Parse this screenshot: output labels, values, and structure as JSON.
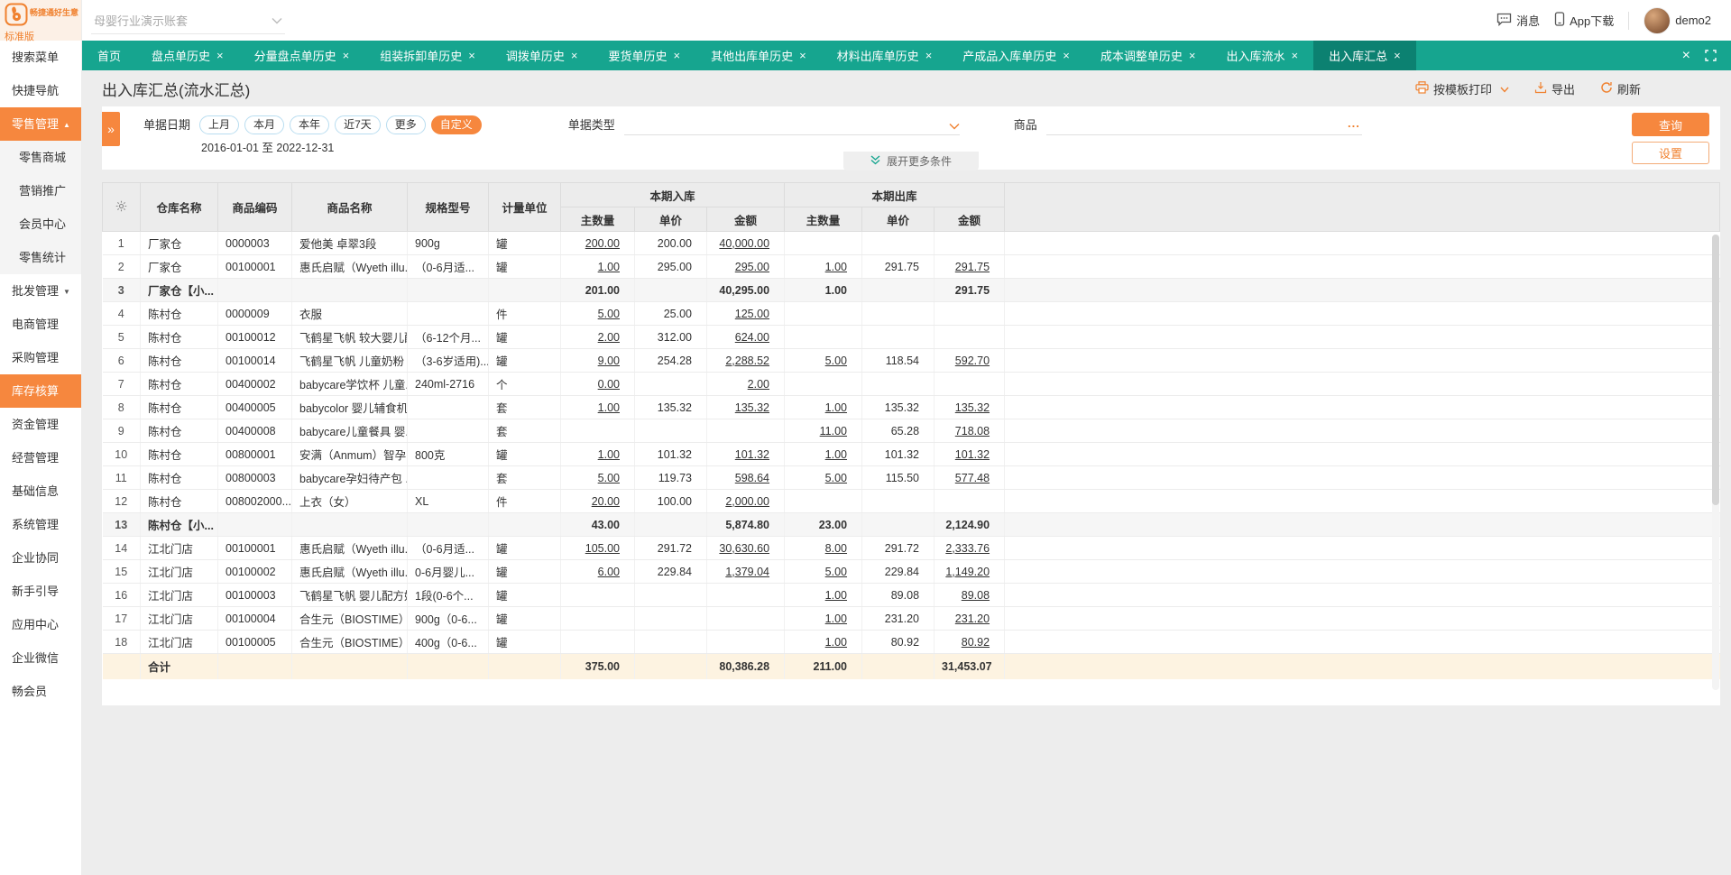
{
  "topbar": {
    "logo_title": "畅捷通好生意",
    "logo_edition": "标准版",
    "account_select": "母婴行业演示账套",
    "messages": "消息",
    "app_download": "App下载",
    "username": "demo2"
  },
  "sidebar": {
    "items": [
      {
        "label": "搜索菜单",
        "kind": "item"
      },
      {
        "label": "快捷导航",
        "kind": "item"
      },
      {
        "label": "零售管理",
        "kind": "group-open"
      },
      {
        "label": "零售商城",
        "kind": "sub"
      },
      {
        "label": "营销推广",
        "kind": "sub"
      },
      {
        "label": "会员中心",
        "kind": "sub"
      },
      {
        "label": "零售统计",
        "kind": "sub"
      },
      {
        "label": "批发管理",
        "kind": "group-closed"
      },
      {
        "label": "电商管理",
        "kind": "item"
      },
      {
        "label": "采购管理",
        "kind": "item"
      },
      {
        "label": "库存核算",
        "kind": "active"
      },
      {
        "label": "资金管理",
        "kind": "item"
      },
      {
        "label": "经营管理",
        "kind": "item"
      },
      {
        "label": "基础信息",
        "kind": "item"
      },
      {
        "label": "系统管理",
        "kind": "item"
      },
      {
        "label": "企业协同",
        "kind": "item"
      },
      {
        "label": "新手引导",
        "kind": "item"
      },
      {
        "label": "应用中心",
        "kind": "item"
      },
      {
        "label": "企业微信",
        "kind": "item"
      },
      {
        "label": "畅会员",
        "kind": "item"
      }
    ]
  },
  "tabs": {
    "items": [
      {
        "label": "首页",
        "closable": false,
        "active": false
      },
      {
        "label": "盘点单历史",
        "closable": true,
        "active": false
      },
      {
        "label": "分量盘点单历史",
        "closable": true,
        "active": false
      },
      {
        "label": "组装拆卸单历史",
        "closable": true,
        "active": false
      },
      {
        "label": "调拨单历史",
        "closable": true,
        "active": false
      },
      {
        "label": "要货单历史",
        "closable": true,
        "active": false
      },
      {
        "label": "其他出库单历史",
        "closable": true,
        "active": false
      },
      {
        "label": "材料出库单历史",
        "closable": true,
        "active": false
      },
      {
        "label": "产成品入库单历史",
        "closable": true,
        "active": false
      },
      {
        "label": "成本调整单历史",
        "closable": true,
        "active": false
      },
      {
        "label": "出入库流水",
        "closable": true,
        "active": false
      },
      {
        "label": "出入库汇总",
        "closable": true,
        "active": true
      }
    ]
  },
  "page": {
    "title": "出入库汇总(流水汇总)",
    "tools": {
      "print": "按模板打印",
      "export": "导出",
      "refresh": "刷新"
    }
  },
  "filters": {
    "date_label": "单据日期",
    "date_pills": [
      "上月",
      "本月",
      "本年",
      "近7天",
      "更多"
    ],
    "custom_label": "自定义",
    "date_range": "2016-01-01 至 2022-12-31",
    "doc_type_label": "单据类型",
    "product_label": "商品",
    "ellipsis": "...",
    "search_button": "查询",
    "settings_button": "设置",
    "expand_more": "展开更多条件"
  },
  "table": {
    "cols": [
      "仓库名称",
      "商品编码",
      "商品名称",
      "规格型号",
      "计量单位"
    ],
    "group_in": "本期入库",
    "group_out": "本期出库",
    "subcols": [
      "主数量",
      "单价",
      "金额"
    ],
    "rows": [
      {
        "num": "1",
        "wh": "厂家仓",
        "code": "0000003",
        "name": "爱他美 卓翠3段",
        "spec": "900g",
        "unit": "罐",
        "in_qty": "200.00",
        "in_price": "200.00",
        "in_amt": "40,000.00",
        "out_qty": "",
        "out_price": "",
        "out_amt": "",
        "type": "data"
      },
      {
        "num": "2",
        "wh": "厂家仓",
        "code": "00100001",
        "name": "惠氏启赋（Wyeth illu...",
        "spec": "（0-6月适...",
        "unit": "罐",
        "in_qty": "1.00",
        "in_price": "295.00",
        "in_amt": "295.00",
        "out_qty": "1.00",
        "out_price": "291.75",
        "out_amt": "291.75",
        "type": "data"
      },
      {
        "num": "3",
        "wh": "厂家仓【小...",
        "code": "",
        "name": "",
        "spec": "",
        "unit": "",
        "in_qty": "201.00",
        "in_price": "",
        "in_amt": "40,295.00",
        "out_qty": "1.00",
        "out_price": "",
        "out_amt": "291.75",
        "type": "subtotal"
      },
      {
        "num": "4",
        "wh": "陈村仓",
        "code": "0000009",
        "name": "衣服",
        "spec": "",
        "unit": "件",
        "in_qty": "5.00",
        "in_price": "25.00",
        "in_amt": "125.00",
        "out_qty": "",
        "out_price": "",
        "out_amt": "",
        "type": "data"
      },
      {
        "num": "5",
        "wh": "陈村仓",
        "code": "00100012",
        "name": "飞鹤星飞帆 较大婴儿配...",
        "spec": "（6-12个月...",
        "unit": "罐",
        "in_qty": "2.00",
        "in_price": "312.00",
        "in_amt": "624.00",
        "out_qty": "",
        "out_price": "",
        "out_amt": "",
        "type": "data"
      },
      {
        "num": "6",
        "wh": "陈村仓",
        "code": "00100014",
        "name": "飞鹤星飞帆 儿童奶粉 4...",
        "spec": "（3-6岁适用)...",
        "unit": "罐",
        "in_qty": "9.00",
        "in_price": "254.28",
        "in_amt": "2,288.52",
        "out_qty": "5.00",
        "out_price": "118.54",
        "out_amt": "592.70",
        "type": "data"
      },
      {
        "num": "7",
        "wh": "陈村仓",
        "code": "00400002",
        "name": "babycare学饮杯 儿童...",
        "spec": "240ml-2716",
        "unit": "个",
        "in_qty": "0.00",
        "in_price": "",
        "in_amt": "2.00",
        "out_qty": "",
        "out_price": "",
        "out_amt": "",
        "type": "data"
      },
      {
        "num": "8",
        "wh": "陈村仓",
        "code": "00400005",
        "name": "babycolor 婴儿辅食机 ...",
        "spec": "",
        "unit": "套",
        "in_qty": "1.00",
        "in_price": "135.32",
        "in_amt": "135.32",
        "out_qty": "1.00",
        "out_price": "135.32",
        "out_amt": "135.32",
        "type": "data"
      },
      {
        "num": "9",
        "wh": "陈村仓",
        "code": "00400008",
        "name": "babycare儿童餐具 婴...",
        "spec": "",
        "unit": "套",
        "in_qty": "",
        "in_price": "",
        "in_amt": "",
        "out_qty": "11.00",
        "out_price": "65.28",
        "out_amt": "718.08",
        "type": "data"
      },
      {
        "num": "10",
        "wh": "陈村仓",
        "code": "00800001",
        "name": "安满（Anmum）智孕...",
        "spec": "800克",
        "unit": "罐",
        "in_qty": "1.00",
        "in_price": "101.32",
        "in_amt": "101.32",
        "out_qty": "1.00",
        "out_price": "101.32",
        "out_amt": "101.32",
        "type": "data"
      },
      {
        "num": "11",
        "wh": "陈村仓",
        "code": "00800003",
        "name": "babycare孕妇待产包 ...",
        "spec": "",
        "unit": "套",
        "in_qty": "5.00",
        "in_price": "119.73",
        "in_amt": "598.64",
        "out_qty": "5.00",
        "out_price": "115.50",
        "out_amt": "577.48",
        "type": "data"
      },
      {
        "num": "12",
        "wh": "陈村仓",
        "code": "008002000...",
        "name": "上衣（女）",
        "spec": "XL",
        "unit": "件",
        "in_qty": "20.00",
        "in_price": "100.00",
        "in_amt": "2,000.00",
        "out_qty": "",
        "out_price": "",
        "out_amt": "",
        "type": "data"
      },
      {
        "num": "13",
        "wh": "陈村仓【小...",
        "code": "",
        "name": "",
        "spec": "",
        "unit": "",
        "in_qty": "43.00",
        "in_price": "",
        "in_amt": "5,874.80",
        "out_qty": "23.00",
        "out_price": "",
        "out_amt": "2,124.90",
        "type": "subtotal"
      },
      {
        "num": "14",
        "wh": "江北门店",
        "code": "00100001",
        "name": "惠氏启赋（Wyeth illu...",
        "spec": "（0-6月适...",
        "unit": "罐",
        "in_qty": "105.00",
        "in_price": "291.72",
        "in_amt": "30,630.60",
        "out_qty": "8.00",
        "out_price": "291.72",
        "out_amt": "2,333.76",
        "type": "data"
      },
      {
        "num": "15",
        "wh": "江北门店",
        "code": "00100002",
        "name": "惠氏启赋（Wyeth illu...",
        "spec": "0-6月婴儿...",
        "unit": "罐",
        "in_qty": "6.00",
        "in_price": "229.84",
        "in_amt": "1,379.04",
        "out_qty": "5.00",
        "out_price": "229.84",
        "out_amt": "1,149.20",
        "type": "data"
      },
      {
        "num": "16",
        "wh": "江北门店",
        "code": "00100003",
        "name": "飞鹤星飞帆 婴儿配方奶...",
        "spec": "1段(0-6个...",
        "unit": "罐",
        "in_qty": "",
        "in_price": "",
        "in_amt": "",
        "out_qty": "1.00",
        "out_price": "89.08",
        "out_amt": "89.08",
        "type": "data"
      },
      {
        "num": "17",
        "wh": "江北门店",
        "code": "00100004",
        "name": "合生元（BIOSTIME）...",
        "spec": "900g（0-6...",
        "unit": "罐",
        "in_qty": "",
        "in_price": "",
        "in_amt": "",
        "out_qty": "1.00",
        "out_price": "231.20",
        "out_amt": "231.20",
        "type": "data"
      },
      {
        "num": "18",
        "wh": "江北门店",
        "code": "00100005",
        "name": "合生元（BIOSTIME）...",
        "spec": "400g（0-6...",
        "unit": "罐",
        "in_qty": "",
        "in_price": "",
        "in_amt": "",
        "out_qty": "1.00",
        "out_price": "80.92",
        "out_amt": "80.92",
        "type": "data"
      }
    ],
    "total": {
      "label": "合计",
      "in_qty": "375.00",
      "in_amt": "80,386.28",
      "out_qty": "211.00",
      "out_amt": "31,453.07"
    }
  },
  "colors": {
    "teal": "#16a58f",
    "teal_active": "#0c8171",
    "orange": "#f6873e",
    "orange_icon": "#f0812f",
    "total_row_bg": "#fdf3e1"
  }
}
